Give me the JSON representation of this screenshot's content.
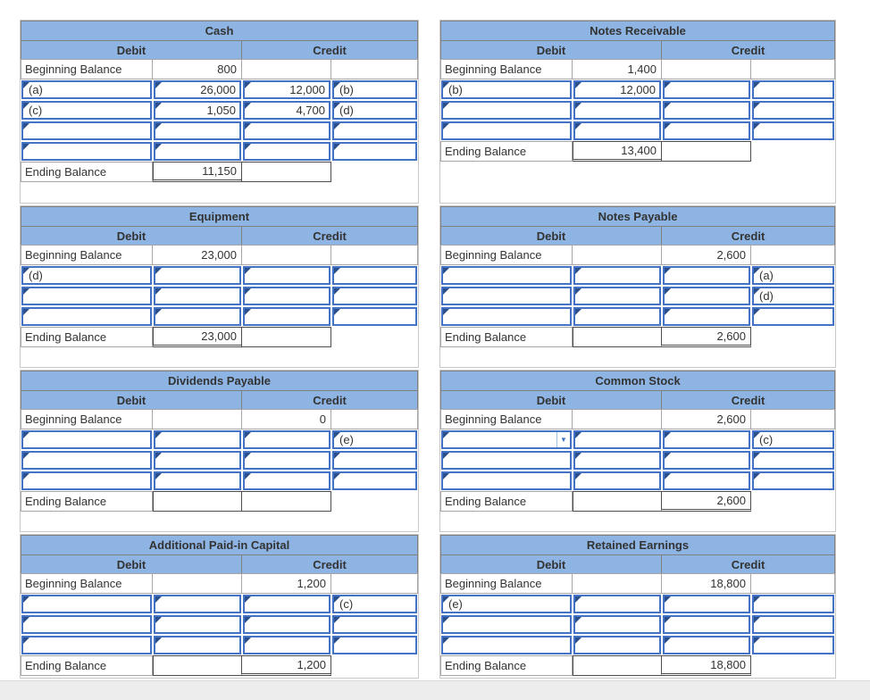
{
  "ui": {
    "debit_header": "Debit",
    "credit_header": "Credit"
  },
  "colors": {
    "header_bg": "#8db4e2",
    "header_border": "#7f7f7f",
    "header_text": "#333333",
    "input_border": "#4472c4",
    "marker": "#2b4e8c",
    "grid_border": "#a6a6a6",
    "ending_border": "#4d4d4d",
    "text": "#333333",
    "container_border": "#c8c8c8",
    "footer_bg": "#ededed",
    "dropdown": "#4472c4"
  },
  "accounts": [
    {
      "id": "cash",
      "title": "Cash",
      "rows": [
        {
          "kind": "begin",
          "label": "Beginning Balance",
          "debit": "800",
          "credit": "",
          "rlabel": ""
        },
        {
          "kind": "entry",
          "label": "(a)",
          "debit": "26,000",
          "credit": "12,000",
          "rlabel": "(b)"
        },
        {
          "kind": "entry",
          "label": "(c)",
          "debit": "1,050",
          "credit": "4,700",
          "rlabel": "(d)"
        },
        {
          "kind": "entry",
          "label": "",
          "debit": "",
          "credit": "",
          "rlabel": ""
        },
        {
          "kind": "entry",
          "label": "",
          "debit": "",
          "credit": "",
          "rlabel": ""
        },
        {
          "kind": "end",
          "label": "Ending Balance",
          "debit": "11,150",
          "credit": "",
          "side": "debit"
        }
      ]
    },
    {
      "id": "notes-receivable",
      "title": "Notes Receivable",
      "rows": [
        {
          "kind": "begin",
          "label": "Beginning Balance",
          "debit": "1,400",
          "credit": "",
          "rlabel": ""
        },
        {
          "kind": "entry",
          "label": "(b)",
          "debit": "12,000",
          "credit": "",
          "rlabel": ""
        },
        {
          "kind": "entry",
          "label": "",
          "debit": "",
          "credit": "",
          "rlabel": ""
        },
        {
          "kind": "entry",
          "label": "",
          "debit": "",
          "credit": "",
          "rlabel": ""
        },
        {
          "kind": "end",
          "label": "Ending Balance",
          "debit": "13,400",
          "credit": "",
          "side": "debit"
        }
      ]
    },
    {
      "id": "equipment",
      "title": "Equipment",
      "rows": [
        {
          "kind": "begin",
          "label": "Beginning Balance",
          "debit": "23,000",
          "credit": "",
          "rlabel": ""
        },
        {
          "kind": "entry",
          "label": "(d)",
          "debit": "",
          "credit": "",
          "rlabel": ""
        },
        {
          "kind": "entry",
          "label": "",
          "debit": "",
          "credit": "",
          "rlabel": ""
        },
        {
          "kind": "entry",
          "label": "",
          "debit": "",
          "credit": "",
          "rlabel": ""
        },
        {
          "kind": "end",
          "label": "Ending Balance",
          "debit": "23,000",
          "credit": "",
          "side": "debit"
        }
      ]
    },
    {
      "id": "notes-payable",
      "title": "Notes Payable",
      "rows": [
        {
          "kind": "begin",
          "label": "Beginning Balance",
          "debit": "",
          "credit": "2,600",
          "rlabel": ""
        },
        {
          "kind": "entry",
          "label": "",
          "debit": "",
          "credit": "",
          "rlabel": "(a)"
        },
        {
          "kind": "entry",
          "label": "",
          "debit": "",
          "credit": "",
          "rlabel": "(d)"
        },
        {
          "kind": "entry",
          "label": "",
          "debit": "",
          "credit": "",
          "rlabel": ""
        },
        {
          "kind": "end",
          "label": "Ending Balance",
          "debit": "",
          "credit": "2,600",
          "side": "credit"
        }
      ]
    },
    {
      "id": "dividends-payable",
      "title": "Dividends Payable",
      "rows": [
        {
          "kind": "begin",
          "label": "Beginning Balance",
          "debit": "",
          "credit": "0",
          "rlabel": ""
        },
        {
          "kind": "entry",
          "label": "",
          "debit": "",
          "credit": "",
          "rlabel": "(e)"
        },
        {
          "kind": "entry",
          "label": "",
          "debit": "",
          "credit": "",
          "rlabel": ""
        },
        {
          "kind": "entry",
          "label": "",
          "debit": "",
          "credit": "",
          "rlabel": ""
        },
        {
          "kind": "end",
          "label": "Ending Balance",
          "debit": "",
          "credit": "",
          "side": ""
        }
      ]
    },
    {
      "id": "common-stock",
      "title": "Common Stock",
      "rows": [
        {
          "kind": "begin",
          "label": "Beginning Balance",
          "debit": "",
          "credit": "2,600",
          "rlabel": ""
        },
        {
          "kind": "entry",
          "label": "",
          "debit": "",
          "credit": "",
          "rlabel": "(c)",
          "dropdown": true
        },
        {
          "kind": "entry",
          "label": "",
          "debit": "",
          "credit": "",
          "rlabel": ""
        },
        {
          "kind": "entry",
          "label": "",
          "debit": "",
          "credit": "",
          "rlabel": ""
        },
        {
          "kind": "end",
          "label": "Ending Balance",
          "debit": "",
          "credit": "2,600",
          "side": "credit"
        }
      ]
    },
    {
      "id": "additional-paid-in-capital",
      "title": "Additional Paid-in Capital",
      "rows": [
        {
          "kind": "begin",
          "label": "Beginning Balance",
          "debit": "",
          "credit": "1,200",
          "rlabel": ""
        },
        {
          "kind": "entry",
          "label": "",
          "debit": "",
          "credit": "",
          "rlabel": "(c)"
        },
        {
          "kind": "entry",
          "label": "",
          "debit": "",
          "credit": "",
          "rlabel": ""
        },
        {
          "kind": "entry",
          "label": "",
          "debit": "",
          "credit": "",
          "rlabel": ""
        },
        {
          "kind": "end",
          "label": "Ending Balance",
          "debit": "",
          "credit": "1,200",
          "side": "credit"
        }
      ]
    },
    {
      "id": "retained-earnings",
      "title": "Retained Earnings",
      "rows": [
        {
          "kind": "begin",
          "label": "Beginning Balance",
          "debit": "",
          "credit": "18,800",
          "rlabel": ""
        },
        {
          "kind": "entry",
          "label": "(e)",
          "debit": "",
          "credit": "",
          "rlabel": ""
        },
        {
          "kind": "entry",
          "label": "",
          "debit": "",
          "credit": "",
          "rlabel": ""
        },
        {
          "kind": "entry",
          "label": "",
          "debit": "",
          "credit": "",
          "rlabel": ""
        },
        {
          "kind": "end",
          "label": "Ending Balance",
          "debit": "",
          "credit": "18,800",
          "side": "credit"
        }
      ]
    }
  ]
}
